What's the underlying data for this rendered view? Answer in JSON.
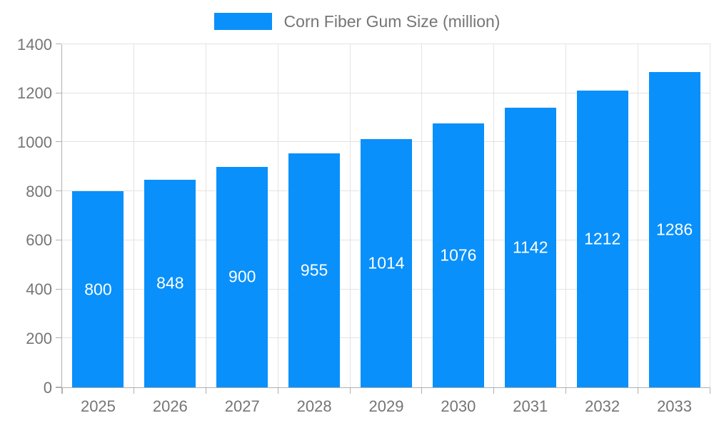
{
  "legend": {
    "label": "Corn Fiber Gum Size (million)"
  },
  "chart_data": {
    "type": "bar",
    "title": "Corn Fiber Gum Size (million)",
    "categories": [
      "2025",
      "2026",
      "2027",
      "2028",
      "2029",
      "2030",
      "2031",
      "2032",
      "2033"
    ],
    "values": [
      800,
      848,
      900,
      955,
      1014,
      1076,
      1142,
      1212,
      1286
    ],
    "xlabel": "",
    "ylabel": "",
    "ylim": [
      0,
      1400
    ],
    "ytick_step": 200,
    "ytick_labels": [
      "0",
      "200",
      "400",
      "600",
      "800",
      "1000",
      "1200",
      "1400"
    ],
    "grid": true,
    "legend_position": "top-center",
    "value_labels": "inside-center"
  },
  "colors": {
    "bar": "#0990fb",
    "value_label": "#ffffff",
    "axis": "#b0b0b0",
    "gridline": "#e3e3e3",
    "tick_text": "#757575",
    "legend_text": "#757575",
    "background": "#ffffff"
  }
}
